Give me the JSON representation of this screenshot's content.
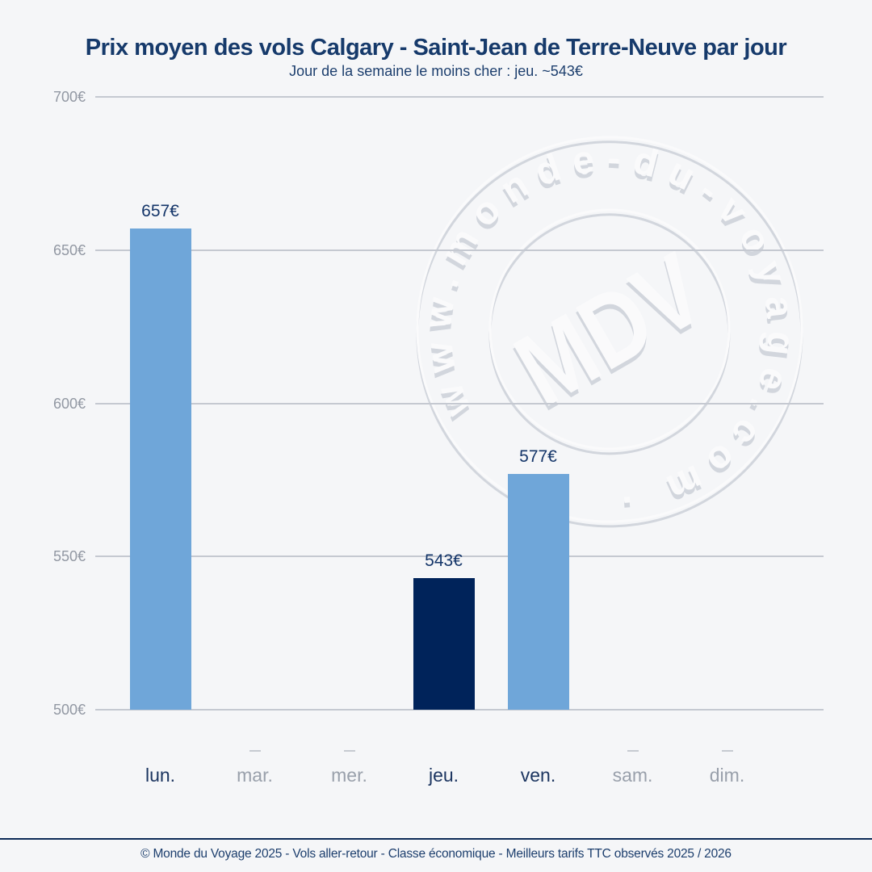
{
  "header": {
    "title": "Prix moyen des vols Calgary - Saint-Jean de Terre-Neuve par jour",
    "subtitle": "Jour de la semaine le moins cher : jeu. ~543€"
  },
  "chart_data": {
    "type": "bar",
    "title": "Prix moyen des vols Calgary - Saint-Jean de Terre-Neuve par jour",
    "subtitle": "Jour de la semaine le moins cher : jeu. ~543€",
    "categories": [
      "lun.",
      "mar.",
      "mer.",
      "jeu.",
      "ven.",
      "sam.",
      "dim."
    ],
    "values": [
      657,
      null,
      null,
      543,
      577,
      null,
      null
    ],
    "value_label_suffix": "€",
    "no_data_marker": "–",
    "ylim": [
      500,
      700
    ],
    "yticks": [
      {
        "value": 500,
        "label": "500€"
      },
      {
        "value": 550,
        "label": "550€"
      },
      {
        "value": 600,
        "label": "600€"
      },
      {
        "value": 650,
        "label": "650€"
      },
      {
        "value": 700,
        "label": "700€"
      }
    ],
    "grid": true,
    "legend": "none",
    "cheapest_index": 3,
    "colors": {
      "bar": "#6fa6d9",
      "bar_cheapest": "#00235a",
      "value_label": "#143569",
      "axis_label_active": "#1c3560",
      "axis_label_inactive": "#99a0ab",
      "gridline": "#c5c9d1",
      "no_data_dash": "#c6cad1",
      "y_tick_label": "#9298a3"
    }
  },
  "watermark": {
    "ring_text": "www.monde-du-voyage.com ·",
    "center_text": "MDV"
  },
  "footer": {
    "text": "© Monde du Voyage 2025 - Vols aller-retour - Classe économique - Meilleurs tarifs TTC observés 2025 / 2026"
  },
  "theme": {
    "background": "#f5f6f8",
    "navy": "#163a6b",
    "footer_line": "#0d2b57"
  }
}
